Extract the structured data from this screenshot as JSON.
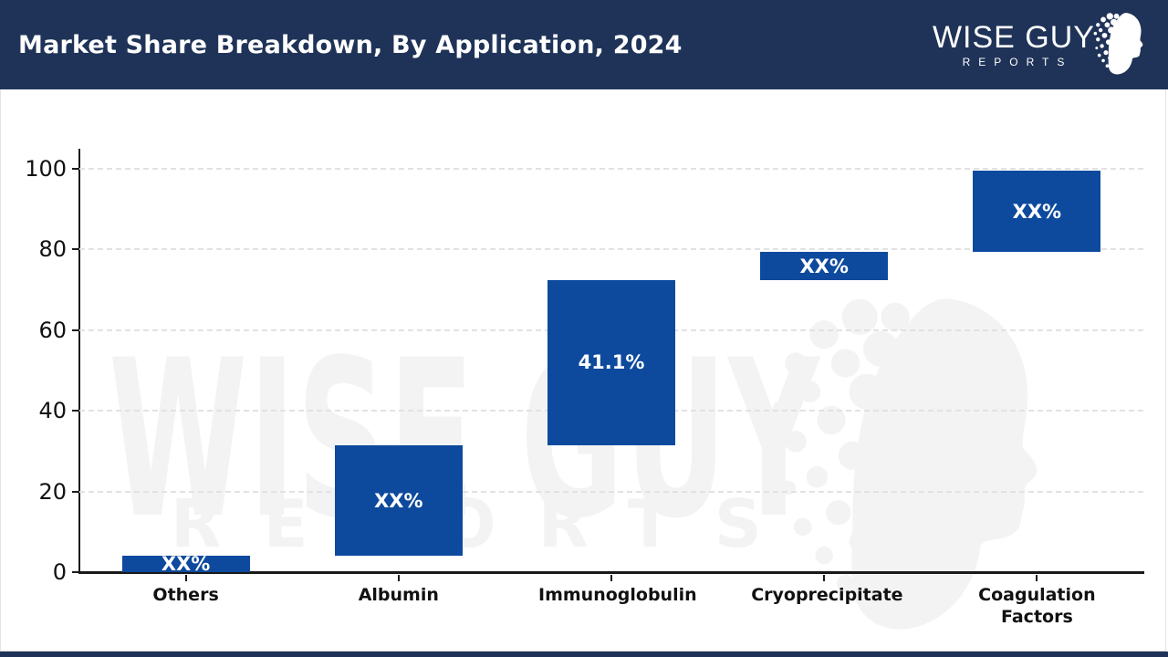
{
  "header": {
    "title": "Market Share Breakdown, By Application, 2024",
    "logo": {
      "line1": "WISE GUY",
      "line2": "REPORTS"
    }
  },
  "watermark": {
    "line1": "WISE GUY",
    "line2": "REPORTS"
  },
  "colors": {
    "header_bg": "#1f3358",
    "footer_bg": "#1f3358",
    "bar": "#0d4a9e",
    "grid": "#e2e2e2",
    "axis": "#1a1a1a",
    "watermark": "#f3f3f3",
    "bar_label": "#ffffff",
    "title_text": "#ffffff",
    "tick_text": "#111111"
  },
  "chart_data": {
    "type": "bar",
    "subtype": "waterfall",
    "title": "Market Share Breakdown, By Application, 2024",
    "categories": [
      "Others",
      "Albumin",
      "Immunoglobulin",
      "Cryoprecipitate",
      "Coagulation Factors"
    ],
    "bars": [
      {
        "category": "Others",
        "start": 0,
        "end": 4,
        "label": "XX%"
      },
      {
        "category": "Albumin",
        "start": 4,
        "end": 31.4,
        "label": "XX%"
      },
      {
        "category": "Immunoglobulin",
        "start": 31.4,
        "end": 72.5,
        "label": "41.1%"
      },
      {
        "category": "Cryoprecipitate",
        "start": 72.5,
        "end": 79.3,
        "label": "XX%"
      },
      {
        "category": "Coagulation Factors",
        "start": 79.3,
        "end": 99.6,
        "label": "XX%"
      }
    ],
    "xlabel": "",
    "ylabel": "",
    "ylim": [
      0,
      100
    ],
    "yticks": [
      0,
      20,
      40,
      60,
      80,
      100
    ],
    "grid": "horizontal-dashed",
    "legend": false
  }
}
